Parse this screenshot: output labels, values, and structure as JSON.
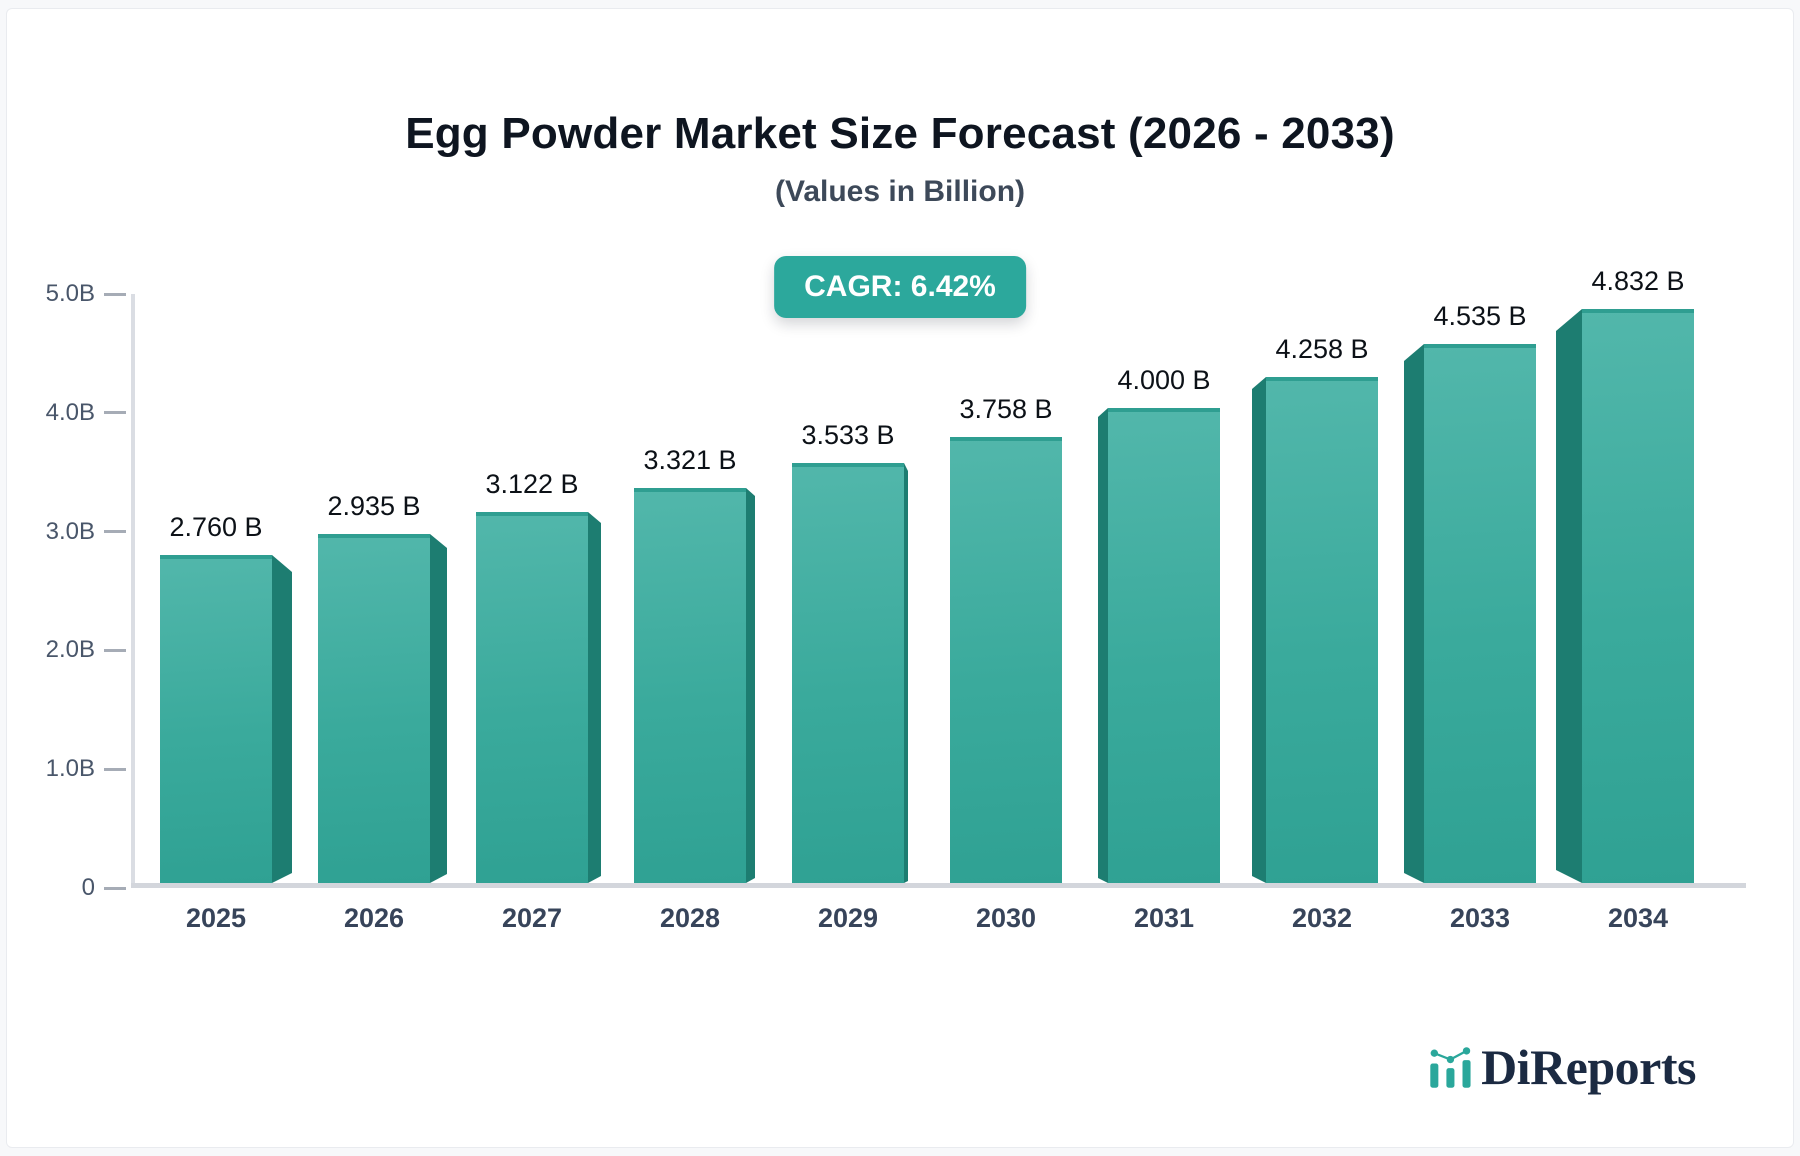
{
  "header": {
    "title": "Egg Powder Market Size Forecast (2026 - 2033)",
    "subtitle": "(Values in Billion)"
  },
  "badge": {
    "label": "CAGR: 6.42%"
  },
  "chart_data": {
    "type": "bar",
    "title": "Egg Powder Market Size Forecast (2026 - 2033)",
    "subtitle": "(Values in Billion)",
    "cagr_label": "CAGR: 6.42%",
    "categories": [
      "2025",
      "2026",
      "2027",
      "2028",
      "2029",
      "2030",
      "2031",
      "2032",
      "2033",
      "2034"
    ],
    "values": [
      2.76,
      2.935,
      3.122,
      3.321,
      3.533,
      3.758,
      4.0,
      4.258,
      4.535,
      4.832
    ],
    "value_labels": [
      "2.760 B",
      "2.935 B",
      "3.122 B",
      "3.321 B",
      "3.533 B",
      "3.758 B",
      "4.000 B",
      "4.258 B",
      "4.535 B",
      "4.832 B"
    ],
    "xlabel": "",
    "ylabel": "",
    "ylim": [
      0,
      5
    ],
    "yticks": [
      "0",
      "1.0B",
      "2.0B",
      "3.0B",
      "4.0B",
      "5.0B"
    ],
    "grid": false,
    "legend": "none",
    "style": "3d-perspective-bars",
    "colors": {
      "bar_front_top": "#52b7ab",
      "bar_front_mid": "#3aaa9c",
      "bar_front_bottom": "#2fa193",
      "bar_top_strip": "#2f9e91",
      "bar_side": "#1d7d71",
      "badge_background": "#2ca89c",
      "axis_line": "#dadde3",
      "baseline": "#d3d6dc",
      "tick_text": "#49566a",
      "category_text": "#37445a",
      "title_text": "#0e1520"
    }
  },
  "logo": {
    "text": "DiReports",
    "icon": "bar-chart-logo-icon",
    "text_color": "#1b2a42",
    "accent_color": "#2aa79b"
  }
}
